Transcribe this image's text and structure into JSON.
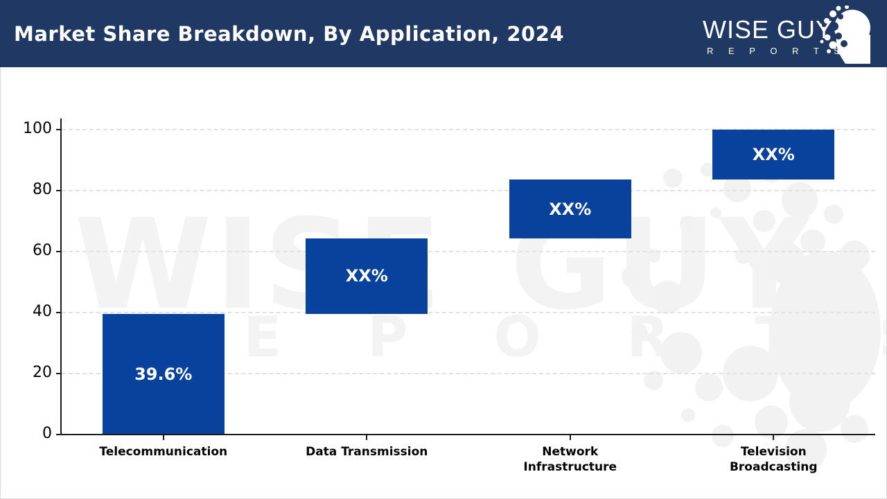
{
  "header": {
    "title": "Market Share Breakdown, By Application, 2024",
    "logo": {
      "line1": "WISE GUY",
      "line2": "R E P O R T S"
    },
    "bg_color": "#1f3864"
  },
  "watermark": {
    "line1": "WISE GUY.",
    "line2": "R E P O R T S ."
  },
  "chart_data": {
    "type": "bar",
    "subtype": "floating-waterfall",
    "title": "Market Share Breakdown, By Application, 2024",
    "categories": [
      "Telecommunication",
      "Data Transmission",
      "Network Infrastructure",
      "Television Broadcasting"
    ],
    "series": [
      {
        "name": "Market Share",
        "segments": [
          {
            "category": "Telecommunication",
            "start": 0,
            "end": 39.6,
            "label": "39.6%"
          },
          {
            "category": "Data Transmission",
            "start": 39.6,
            "end": 64.3,
            "label": "XX%"
          },
          {
            "category": "Network Infrastructure",
            "start": 64.3,
            "end": 83.6,
            "label": "XX%"
          },
          {
            "category": "Television Broadcasting",
            "start": 83.6,
            "end": 100,
            "label": "XX%"
          }
        ]
      }
    ],
    "yticks": [
      0,
      20,
      40,
      60,
      80,
      100
    ],
    "ylim": [
      0,
      103.5
    ],
    "xlabel": "",
    "ylabel": "",
    "grid": "horizontal-dashed",
    "legend": "none",
    "bar_color": "#08429c",
    "bar_label_color": "#ffffff"
  }
}
